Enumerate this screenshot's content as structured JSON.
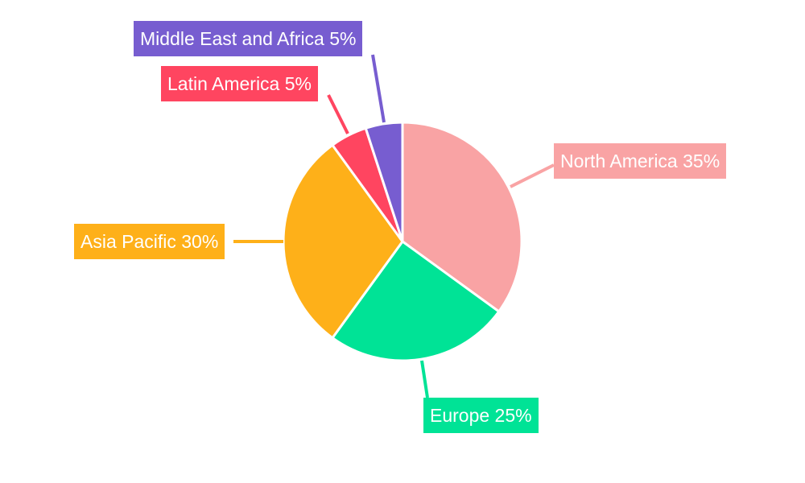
{
  "chart_data": {
    "type": "pie",
    "title": "",
    "start_angle": "top, clockwise",
    "slices": [
      {
        "label": "North America 35%",
        "name": "North America",
        "value": 35,
        "color": "#F9A3A4"
      },
      {
        "label": "Europe 25%",
        "name": "Europe",
        "value": 25,
        "color": "#00E396"
      },
      {
        "label": "Asia Pacific 30%",
        "name": "Asia Pacific",
        "value": 30,
        "color": "#FEB019"
      },
      {
        "label": "Latin America 5%",
        "name": "Latin America",
        "value": 5,
        "color": "#FF4560"
      },
      {
        "label": "Middle East and Africa 5%",
        "name": "Middle East and Africa",
        "value": 5,
        "color": "#775DD0"
      }
    ]
  }
}
